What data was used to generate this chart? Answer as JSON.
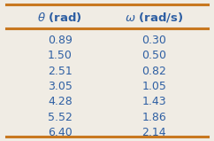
{
  "col1": [
    "0.89",
    "1.50",
    "2.51",
    "3.05",
    "4.28",
    "5.52",
    "6.40"
  ],
  "col2": [
    "0.30",
    "0.50",
    "0.82",
    "1.05",
    "1.43",
    "1.86",
    "2.14"
  ],
  "header_color": "#2e5fa3",
  "data_color": "#2e5fa3",
  "line_color": "#c87820",
  "bg_color": "#f0ece4",
  "header_fontsize": 9.5,
  "data_fontsize": 9.0
}
